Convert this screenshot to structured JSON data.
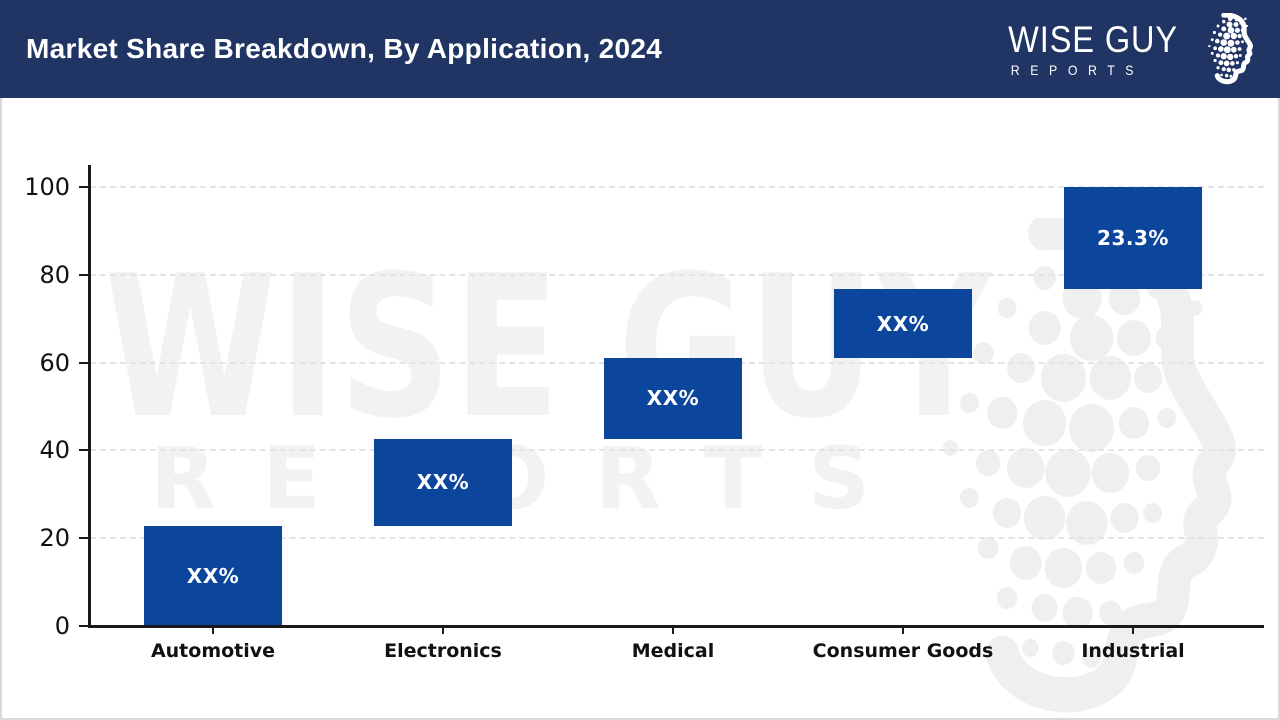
{
  "header": {
    "title": "Market Share Breakdown, By Application, 2024",
    "bg_color": "#213564",
    "logo": {
      "line1": "WISE GUY",
      "line2": "REPORTS"
    }
  },
  "watermark": {
    "line1": "WISE GUY",
    "line2": "REPORTS"
  },
  "chart_data": {
    "type": "bar",
    "subtype": "waterfall-floating-bars",
    "title": "Market Share Breakdown, By Application, 2024",
    "categories": [
      "Automotive",
      "Electronics",
      "Medical",
      "Consumer Goods",
      "Industrial"
    ],
    "bars": [
      {
        "category": "Automotive",
        "start": 0,
        "end": 22.7,
        "label": "XX%"
      },
      {
        "category": "Electronics",
        "start": 22.7,
        "end": 42.7,
        "label": "XX%"
      },
      {
        "category": "Medical",
        "start": 42.7,
        "end": 61.0,
        "label": "XX%"
      },
      {
        "category": "Consumer Goods",
        "start": 61.0,
        "end": 76.7,
        "label": "XX%"
      },
      {
        "category": "Industrial",
        "start": 76.7,
        "end": 100.0,
        "label": "23.3%"
      }
    ],
    "yticks": [
      0,
      20,
      40,
      60,
      80,
      100
    ],
    "ylim": [
      0,
      105
    ],
    "xlabel": "",
    "ylabel": "",
    "grid": "horizontal-dashed",
    "legend": null,
    "bar_color": "#0b469c",
    "bar_label_color": "#ffffff",
    "axis_color": "#1a1a1a"
  }
}
